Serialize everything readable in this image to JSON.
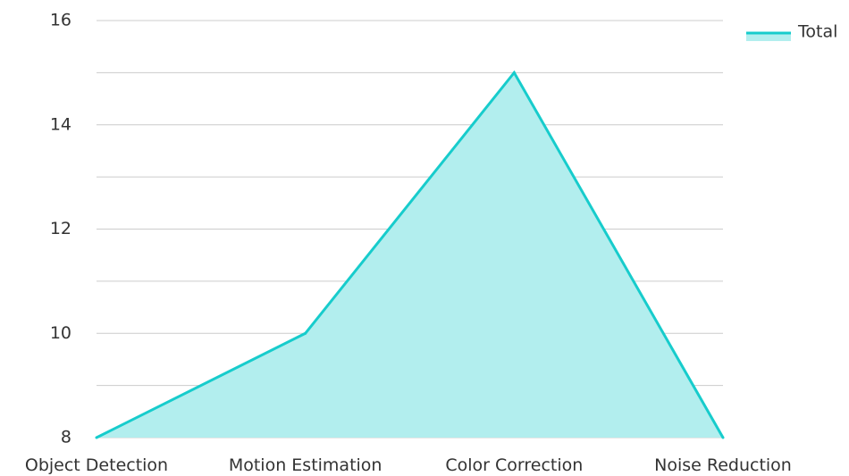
{
  "chart_data": {
    "type": "area",
    "categories": [
      "Object Detection",
      "Motion Estimation",
      "Color Correction",
      "Noise Reduction"
    ],
    "series": [
      {
        "name": "Total",
        "values": [
          8,
          10,
          15,
          8
        ]
      }
    ],
    "ylim": [
      8,
      16
    ],
    "yticks": [
      8,
      10,
      12,
      14,
      16
    ],
    "grid": true,
    "legend": "top-right",
    "colors": {
      "line": "#17CCCC",
      "fill": "#B2EEEE",
      "grid": "#cccccc",
      "text": "#333333"
    }
  }
}
